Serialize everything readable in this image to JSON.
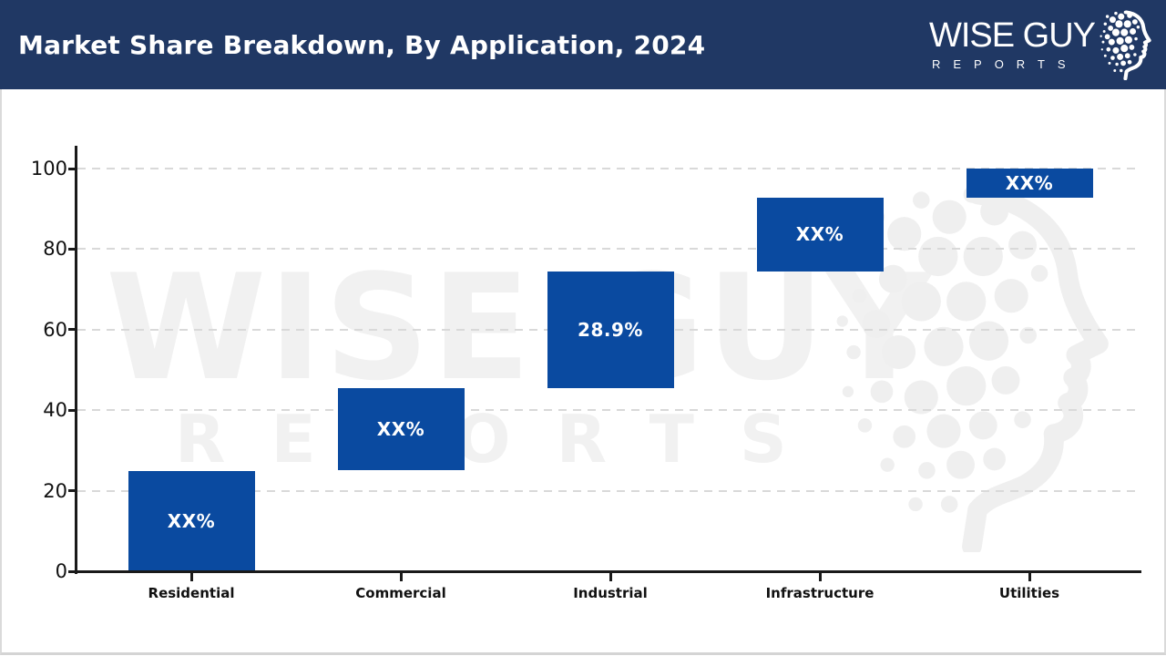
{
  "header": {
    "title": "Market Share Breakdown, By Application, 2024",
    "logo": {
      "wordmark": "WISE GUY",
      "subtext": "REPORTS",
      "icon": "dotted-head-profile"
    }
  },
  "watermark": {
    "wordmark": "WISE GUY",
    "subtext": "REPORTS",
    "icon": "dotted-head-profile"
  },
  "colors": {
    "header_bg": "#203864",
    "header_text": "#ffffff",
    "bar_fill": "#0a4aa0",
    "bar_label_text": "#ffffff",
    "axis": "#1a1a1a",
    "tick_label": "#111111",
    "gridline": "#d9d9d9",
    "watermark": "#f1f1f1",
    "background": "#ffffff"
  },
  "chart_data": {
    "type": "bar",
    "subtype": "floating-waterfall",
    "title": "Market Share Breakdown, By Application, 2024",
    "categories": [
      "Residential",
      "Commercial",
      "Industrial",
      "Infrastructure",
      "Utilities"
    ],
    "bars": [
      {
        "category": "Residential",
        "start": 0,
        "end": 25,
        "label": "XX%"
      },
      {
        "category": "Commercial",
        "start": 25,
        "end": 45.5,
        "label": "XX%"
      },
      {
        "category": "Industrial",
        "start": 45.5,
        "end": 74.4,
        "label": "28.9%",
        "value": 28.9
      },
      {
        "category": "Infrastructure",
        "start": 74.4,
        "end": 92.8,
        "label": "XX%"
      },
      {
        "category": "Utilities",
        "start": 92.8,
        "end": 100,
        "label": "XX%"
      }
    ],
    "xlabel": "",
    "ylabel": "",
    "ylim": [
      0,
      105
    ],
    "yticks": [
      0,
      20,
      40,
      60,
      80,
      100
    ],
    "grid": "horizontal dashed",
    "legend": "none"
  }
}
